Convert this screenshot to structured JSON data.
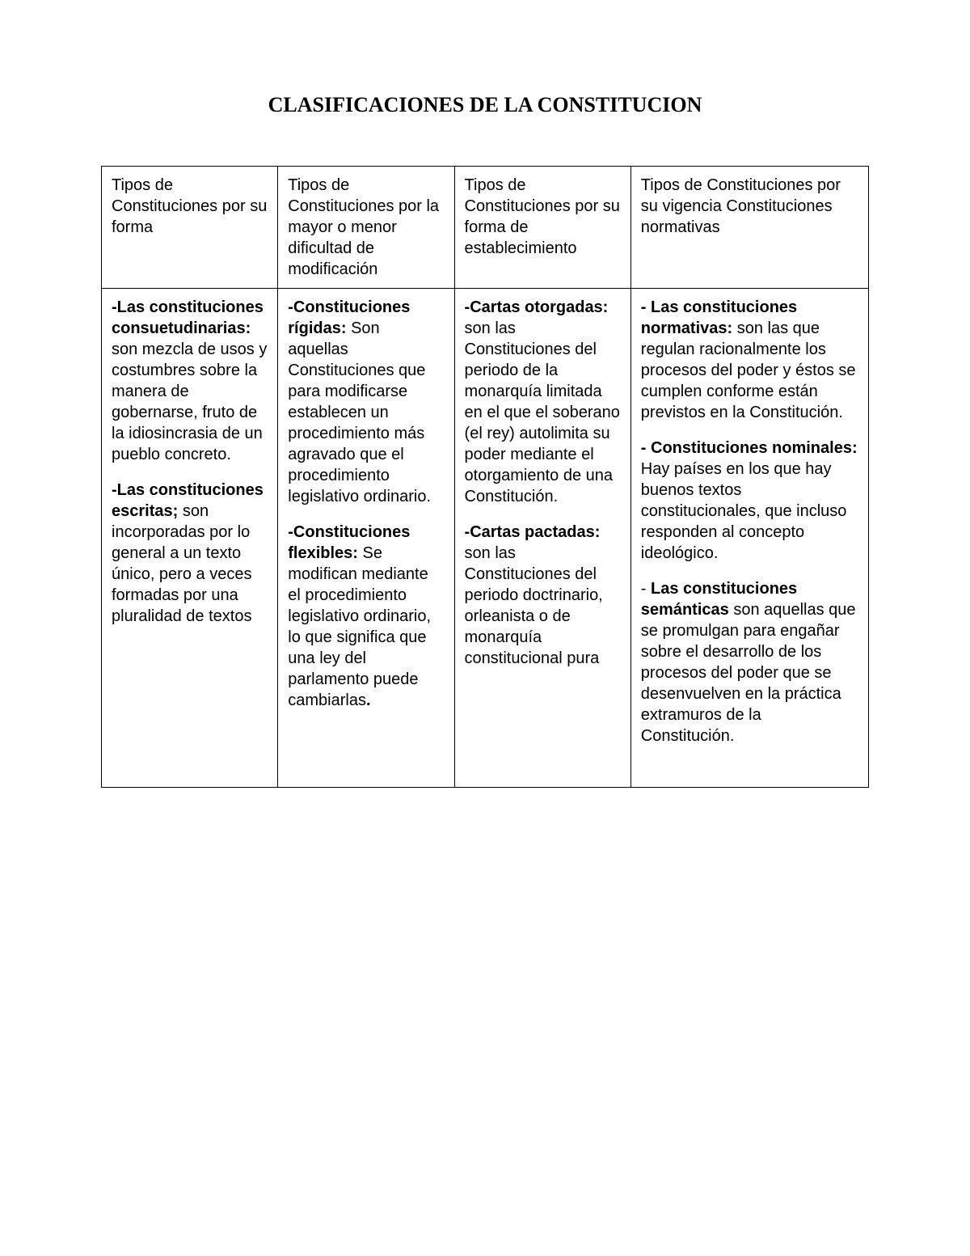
{
  "title": "CLASIFICACIONES DE LA CONSTITUCION",
  "table": {
    "columns": [
      {
        "header": "Tipos de Constituciones por su forma"
      },
      {
        "header": "Tipos de Constituciones por la mayor o menor dificultad de modificación"
      },
      {
        "header": "Tipos de Constituciones por su forma de establecimiento"
      },
      {
        "header": "Tipos de Constituciones por su vigencia Constituciones normativas"
      }
    ],
    "body": {
      "col1": {
        "item1_label": "-Las constituciones consuetudinarias:",
        "item1_text": " son mezcla de usos y costumbres sobre la manera de gobernarse, fruto de la idiosincrasia de un pueblo concreto.",
        "item2_label": "-Las constituciones escritas;",
        "item2_text": " son incorporadas por lo general a un texto único, pero a veces formadas por una pluralidad de textos"
      },
      "col2": {
        "item1_label": "-Constituciones rígidas:",
        "item1_text": " Son aquellas Constituciones que para modificarse establecen un procedimiento más agravado que el procedimiento legislativo ordinario.",
        "item2_label": "-Constituciones flexibles:",
        "item2_text": " Se modifican mediante el procedimiento legislativo ordinario, lo que significa que una ley del parlamento puede cambiarlas",
        "item2_trailing_bold": "."
      },
      "col3": {
        "item1_label": "-Cartas otorgadas:",
        "item1_text": " son las Constituciones del periodo de la monarquía limitada en el que el soberano (el rey) autolimita su poder mediante el otorgamiento de una Constitución.",
        "item2_label": "-Cartas pactadas:",
        "item2_text": " son las Constituciones del periodo doctrinario, orleanista o de monarquía constitucional pura"
      },
      "col4": {
        "item1_label": "- Las constituciones normativas:",
        "item1_text": " son las que regulan racionalmente los procesos del poder y éstos se cumplen conforme están previstos en la Constitución.",
        "item2_label": "- Constituciones nominales:",
        "item2_text": " Hay países en los que hay buenos textos constitucionales, que incluso responden al concepto ideológico.",
        "item3_pre": "- ",
        "item3_label": "Las constituciones semánticas",
        "item3_text": " son aquellas que se promulgan para engañar sobre el desarrollo de los procesos del poder que se desenvuelven en la práctica extramuros de la Constitución."
      }
    }
  }
}
